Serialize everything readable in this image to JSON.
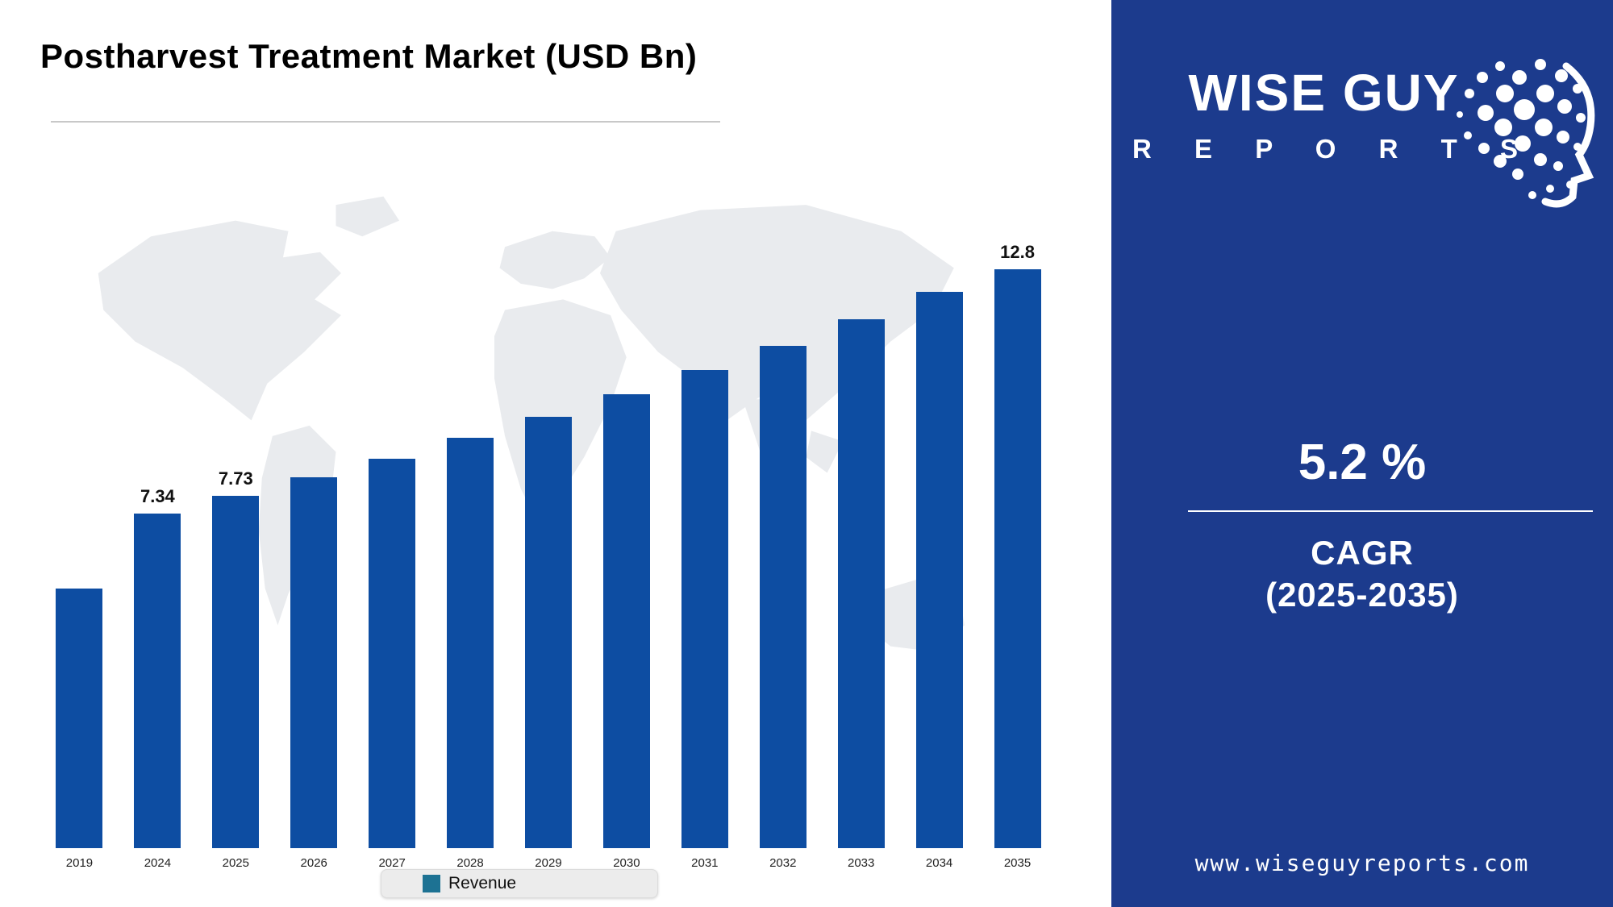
{
  "title": "Postharvest Treatment Market (USD Bn)",
  "chart_data": {
    "type": "bar",
    "title": "Postharvest Treatment Market (USD Bn)",
    "unit": "USD Bn",
    "categories": [
      "2019",
      "2024",
      "2025",
      "2026",
      "2027",
      "2028",
      "2029",
      "2030",
      "2031",
      "2032",
      "2033",
      "2034",
      "2035"
    ],
    "values": [
      5.69,
      7.34,
      7.73,
      8.13,
      8.55,
      9.0,
      9.47,
      9.96,
      10.48,
      11.02,
      11.6,
      12.2,
      12.8
    ],
    "data_labels": {
      "2024": "7.34",
      "2025": "7.73",
      "2035": "12.8"
    },
    "bar_color": "#0d4da2",
    "ylim": [
      0,
      13.3
    ],
    "grid": false,
    "legend": [
      {
        "label": "Revenue",
        "color": "#1d7293"
      }
    ],
    "legend_position": "bottom"
  },
  "sidebar": {
    "bg_color": "#1c3b8d",
    "logo_line1": "WISE GUY",
    "logo_line2": "R E P O R T S",
    "cagr_value": "5.2 %",
    "cagr_label": "CAGR",
    "cagr_period": "(2025-2035)",
    "website": "www.wiseguyreports.com"
  }
}
